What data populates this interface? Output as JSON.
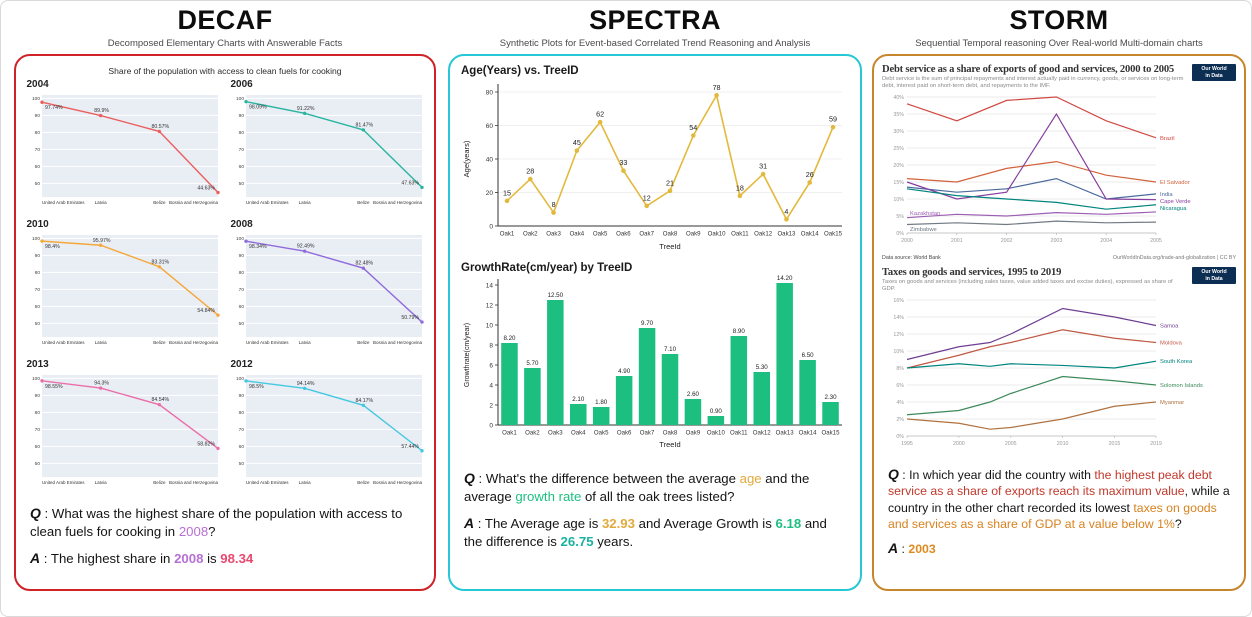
{
  "decaf": {
    "title": "DECAF",
    "subtitle": "Decomposed Elementary Charts with Answerable Facts",
    "accent": "#cf2127",
    "qa": {
      "q_label": "Q",
      "a_label": "A",
      "question": [
        {
          "text": "What was the highest share of the population with access to clean fuels for cooking in "
        },
        {
          "text": "2008",
          "color": "#b86fd4"
        },
        {
          "text": "?"
        }
      ],
      "answer": [
        {
          "text": "The highest share in "
        },
        {
          "text": "2008",
          "color": "#b86fd4",
          "bold": true
        },
        {
          "text": " is "
        },
        {
          "text": "98.34",
          "color": "#e8486e",
          "bold": true
        }
      ]
    }
  },
  "spectra": {
    "title": "SPECTRA",
    "subtitle": "Synthetic Plots for Event-based Correlated Trend Reasoning and Analysis",
    "accent": "#27c8d6",
    "qa": {
      "q_label": "Q",
      "a_label": "A",
      "question": [
        {
          "text": "What's the difference between the average "
        },
        {
          "text": "age",
          "color": "#e2a former"
        },
        {
          "text": " and the average "
        },
        {
          "text": "growth rate",
          "color": "#1dbf81"
        },
        {
          "text": " of all the oak trees listed?"
        }
      ],
      "answer": [
        {
          "text": "The Average age is "
        },
        {
          "text": "32.93",
          "color": "#e2a93b",
          "bold": true
        },
        {
          "text": " and Average Growth is "
        },
        {
          "text": "6.18",
          "color": "#1dbf81",
          "bold": true
        },
        {
          "text": " and the difference is "
        },
        {
          "text": "26.75",
          "color": "#17b3a0",
          "bold": true
        },
        {
          "text": " years."
        }
      ]
    }
  },
  "storm": {
    "title": "STORM",
    "subtitle": "Sequential Temporal reasoning Over Real-world Multi-domain charts",
    "accent": "#c8862c",
    "logo": {
      "line1": "Our World",
      "line2": "in Data"
    },
    "qa": {
      "q_label": "Q",
      "a_label": "A",
      "question": [
        {
          "text": "In which year did the country with "
        },
        {
          "text": "the highest peak debt service as a share of exports reach its maximum value",
          "color": "#c0392b"
        },
        {
          "text": ", while a country in the other chart recorded its lowest "
        },
        {
          "text": "taxes on goods and services as a share of GDP at a value below 1%",
          "color": "#d8821f"
        },
        {
          "text": "?"
        }
      ],
      "answer": [
        {
          "text": "2003",
          "color": "#e08a1e",
          "bold": true
        }
      ]
    }
  },
  "chart_data": [
    {
      "panel": "decaf",
      "type": "line",
      "title": "Share of the population with access to clean fuels for cooking",
      "categories": [
        "United Arab Emirates",
        "Latvia",
        "Belize",
        "Bosnia and Herzegovina"
      ],
      "ylim": [
        42,
        102
      ],
      "yticks": [
        50,
        60,
        70,
        80,
        90,
        100
      ],
      "charts": [
        {
          "year": "2004",
          "color": "#ea5f5f",
          "values": [
            97.74,
            89.9,
            80.57,
            44.63
          ]
        },
        {
          "year": "2006",
          "color": "#2ab5a0",
          "values": [
            98.09,
            91.22,
            81.47,
            47.63
          ]
        },
        {
          "year": "2010",
          "color": "#f5a83c",
          "values": [
            98.4,
            95.97,
            83.31,
            54.84
          ]
        },
        {
          "year": "2008",
          "color": "#8f6bdb",
          "values": [
            98.34,
            92.49,
            82.48,
            50.79
          ]
        },
        {
          "year": "2013",
          "color": "#ea6fa9",
          "values": [
            98.55,
            94.3,
            84.54,
            58.82
          ]
        },
        {
          "year": "2012",
          "color": "#45c8e0",
          "values": [
            98.5,
            94.14,
            84.17,
            57.44
          ]
        }
      ]
    },
    {
      "panel": "spectra",
      "type": "line",
      "title": "Age(Years) vs. TreeID",
      "xlabel": "TreeId",
      "ylabel": "Age(years)",
      "color": "#e3b93d",
      "categories": [
        "Oak1",
        "Oak2",
        "Oak3",
        "Oak4",
        "Oak5",
        "Oak6",
        "Oak7",
        "Oak8",
        "Oak9",
        "Oak10",
        "Oak11",
        "Oak12",
        "Oak13",
        "Oak14",
        "Oak15"
      ],
      "values": [
        15,
        28,
        8,
        45,
        62,
        33,
        12,
        21,
        54,
        78,
        18,
        31,
        4,
        26,
        59
      ],
      "ylim": [
        0,
        80
      ],
      "yticks": [
        0,
        20,
        40,
        60,
        80
      ]
    },
    {
      "panel": "spectra",
      "type": "bar",
      "title": "GrowthRate(cm/year) by TreeID",
      "xlabel": "TreeId",
      "ylabel": "Growthrate(cm/year)",
      "color": "#1dbf81",
      "categories": [
        "Oak1",
        "Oak2",
        "Oak3",
        "Oak4",
        "Oak5",
        "Oak6",
        "Oak7",
        "Oak8",
        "Oak9",
        "Oak10",
        "Oak11",
        "Oak12",
        "Oak13",
        "Oak14",
        "Oak15"
      ],
      "values": [
        8.2,
        5.7,
        12.5,
        2.1,
        1.8,
        4.9,
        9.7,
        7.1,
        2.6,
        0.9,
        8.9,
        5.3,
        14.2,
        6.5,
        2.3
      ],
      "ylim": [
        0,
        14
      ],
      "yticks": [
        0,
        2,
        4,
        6,
        8,
        10,
        12,
        14
      ]
    },
    {
      "panel": "storm",
      "type": "line",
      "title": "Debt service as a share of exports of good and services, 2000 to 2005",
      "subtitle": "Debt service is the sum of principal repayments and interest actually paid in currency, goods, or services on long-term debt, interest paid on short-term debt, and repayments to the IMF.",
      "x": [
        2000,
        2001,
        2002,
        2003,
        2004,
        2005
      ],
      "xticks": [
        2000,
        2001,
        2002,
        2003,
        2004,
        2005
      ],
      "ylim": [
        0,
        40
      ],
      "yticks": [
        "0%",
        "5%",
        "10%",
        "15%",
        "20%",
        "25%",
        "30%",
        "35%",
        "40%"
      ],
      "series": [
        {
          "name": "Brazil",
          "color": "#cf4a43",
          "values": [
            38,
            33,
            39,
            40,
            33,
            28
          ],
          "label_pos": "end"
        },
        {
          "name": "El Salvador",
          "color": "#d1623c",
          "values": [
            16,
            15,
            19,
            21,
            17,
            15
          ],
          "label_pos": "end"
        },
        {
          "name": "India",
          "color": "#4c6a9c",
          "values": [
            13.5,
            12,
            13,
            16,
            10,
            11.5
          ],
          "label_pos": "end"
        },
        {
          "name": "Cape Verde",
          "color": "#883e9f",
          "values": [
            15,
            10,
            12,
            35,
            10,
            9.8
          ],
          "label_pos": "end"
        },
        {
          "name": "Nicaragua",
          "color": "#00847e",
          "values": [
            13,
            11,
            10,
            9,
            7,
            8.3
          ],
          "label_pos": "end"
        },
        {
          "name": "Kazakhstan",
          "color": "#9d5fb4",
          "values": [
            4.5,
            5.5,
            5,
            6,
            5.5,
            6.2
          ],
          "label_pos": "start"
        },
        {
          "name": "Zimbabwe",
          "color": "#717a85",
          "values": [
            2.5,
            3,
            2.5,
            3.5,
            3,
            3.2
          ],
          "label_pos": "start"
        }
      ],
      "footer_left": "Data source: World Bank",
      "footer_right": "OurWorldInData.org/trade-and-globalization | CC BY"
    },
    {
      "panel": "storm",
      "type": "line",
      "title": "Taxes on goods and services, 1995 to 2019",
      "subtitle": "Taxes on goods and services (including sales taxes, value added taxes and excise duties), expressed as share of GDP.",
      "x": [
        1995,
        2000,
        2003,
        2005,
        2010,
        2015,
        2019
      ],
      "xticks": [
        1995,
        2000,
        2005,
        2010,
        2015,
        2019
      ],
      "ylim": [
        0,
        16
      ],
      "yticks": [
        "0%",
        "2%",
        "4%",
        "6%",
        "8%",
        "10%",
        "12%",
        "14%",
        "16%"
      ],
      "series": [
        {
          "name": "Samoa",
          "color": "#6d3e91",
          "values": [
            9,
            10.5,
            11,
            12,
            15,
            14,
            13
          ],
          "label_pos": "end"
        },
        {
          "name": "Moldova",
          "color": "#c05945",
          "values": [
            8,
            9.5,
            10.5,
            11,
            12.5,
            11.5,
            11
          ],
          "label_pos": "end"
        },
        {
          "name": "South Korea",
          "color": "#00847e",
          "values": [
            8,
            8.5,
            8.2,
            8.5,
            8.3,
            8,
            8.8
          ],
          "label_pos": "end"
        },
        {
          "name": "Solomon Islands",
          "color": "#3c8a5b",
          "values": [
            2.5,
            3,
            4,
            5,
            7,
            6.5,
            6
          ],
          "label_pos": "end"
        },
        {
          "name": "Myanmar",
          "color": "#b0713f",
          "values": [
            2,
            1.5,
            0.8,
            1,
            2,
            3.5,
            4
          ],
          "label_pos": "end"
        }
      ]
    }
  ]
}
